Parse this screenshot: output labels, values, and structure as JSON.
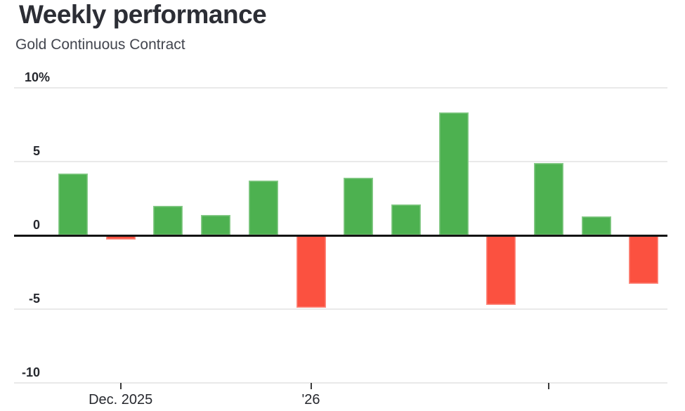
{
  "chart_data": {
    "type": "bar",
    "title": "Weekly performance",
    "subtitle": "Gold Continuous Contract",
    "unit": "percent",
    "values": [
      4.2,
      -0.3,
      2.0,
      1.4,
      3.7,
      -4.9,
      3.9,
      2.1,
      8.3,
      -4.7,
      4.9,
      1.3,
      -3.3
    ],
    "ylim": [
      -10,
      10
    ],
    "grid": true,
    "legend_position": "none",
    "y_ticks": [
      {
        "value": 10,
        "label": "10%"
      },
      {
        "value": 5,
        "label": "5"
      },
      {
        "value": 0,
        "label": "0"
      },
      {
        "value": -5,
        "label": "-5"
      },
      {
        "value": -10,
        "label": "-10"
      }
    ],
    "x_ticks": [
      {
        "bar_index": 1,
        "label": "Dec. 2025"
      },
      {
        "bar_index": 5,
        "label": "'26"
      },
      {
        "bar_index": 10,
        "label": ""
      }
    ],
    "colors": {
      "positive": "#4db150",
      "negative": "#fb5140",
      "zero_line": "#141414",
      "gridline": "#e9e9e9",
      "axis_text": "#26282e",
      "tick_mark": "#3a3a3a",
      "title_text": "#2c2e35",
      "subtitle_text": "#42454e"
    }
  }
}
